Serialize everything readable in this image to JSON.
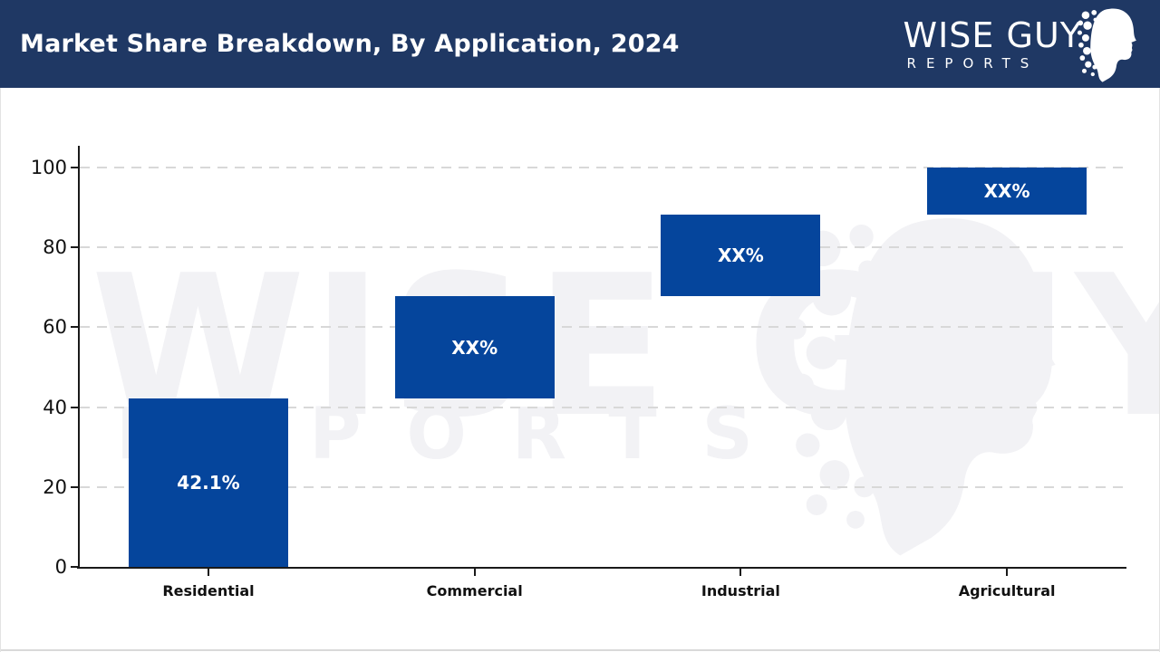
{
  "header": {
    "title": "Market Share Breakdown, By Application, 2024",
    "logo": {
      "line1": "WISE GUY",
      "line2": "REPORTS"
    }
  },
  "watermark": {
    "line1": "WISE GUY",
    "line2": "REPORTS"
  },
  "chart_data": {
    "type": "bar",
    "subtype": "waterfall",
    "title": "Market Share Breakdown, By Application, 2024",
    "categories": [
      "Residential",
      "Commercial",
      "Industrial",
      "Agricultural"
    ],
    "segments": [
      {
        "category": "Residential",
        "label": "42.1%",
        "start": 0,
        "end": 42.1
      },
      {
        "category": "Commercial",
        "label": "XX%",
        "start": 42.1,
        "end": 67.8
      },
      {
        "category": "Industrial",
        "label": "XX%",
        "start": 67.8,
        "end": 88.2
      },
      {
        "category": "Agricultural",
        "label": "XX%",
        "start": 88.2,
        "end": 100
      }
    ],
    "yticks": [
      0,
      20,
      40,
      60,
      80,
      100
    ],
    "ylim": [
      0,
      107
    ],
    "grid": true,
    "legend": false,
    "bar_color": "#05459c",
    "header_color": "#1f3864",
    "xlabel": "",
    "ylabel": ""
  }
}
